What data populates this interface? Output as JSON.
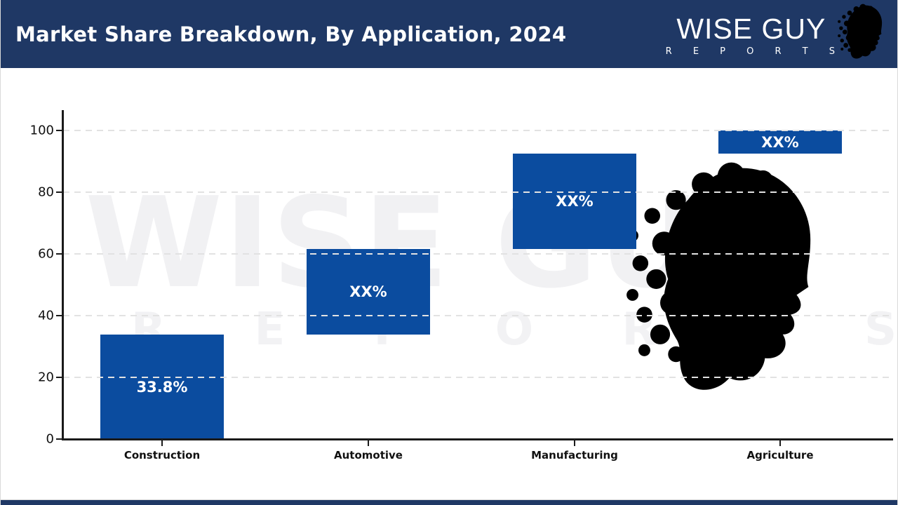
{
  "header": {
    "title": "Market Share Breakdown, By Application, 2024",
    "bg_color": "#1f3865",
    "logo": {
      "line1": "WISE GUY",
      "line2": "R E P O R T S"
    }
  },
  "watermark": {
    "line1": "WISE GUY",
    "line2": "R E P O R T S"
  },
  "chart_data": {
    "type": "bar",
    "subtype": "waterfall-floating-bars",
    "title": "Market Share Breakdown, By Application, 2024",
    "categories": [
      "Construction",
      "Automotive",
      "Manufacturing",
      "Agriculture"
    ],
    "segments": [
      {
        "category": "Construction",
        "start": 0,
        "end": 33.8,
        "label": "33.8%"
      },
      {
        "category": "Automotive",
        "start": 33.8,
        "end": 61.5,
        "label": "XX%"
      },
      {
        "category": "Manufacturing",
        "start": 61.5,
        "end": 92.5,
        "label": "XX%"
      },
      {
        "category": "Agriculture",
        "start": 92.5,
        "end": 100,
        "label": "XX%"
      }
    ],
    "ylim": [
      0,
      100
    ],
    "yticks": [
      0,
      20,
      40,
      60,
      80,
      100
    ],
    "grid": "dashed-horizontal-over-bars",
    "legend": "none",
    "bar_color": "#0b4c9f",
    "bar_label_color": "#ffffff",
    "axis_color": "#1a1a1a",
    "grid_color": "#e2e2e2"
  }
}
